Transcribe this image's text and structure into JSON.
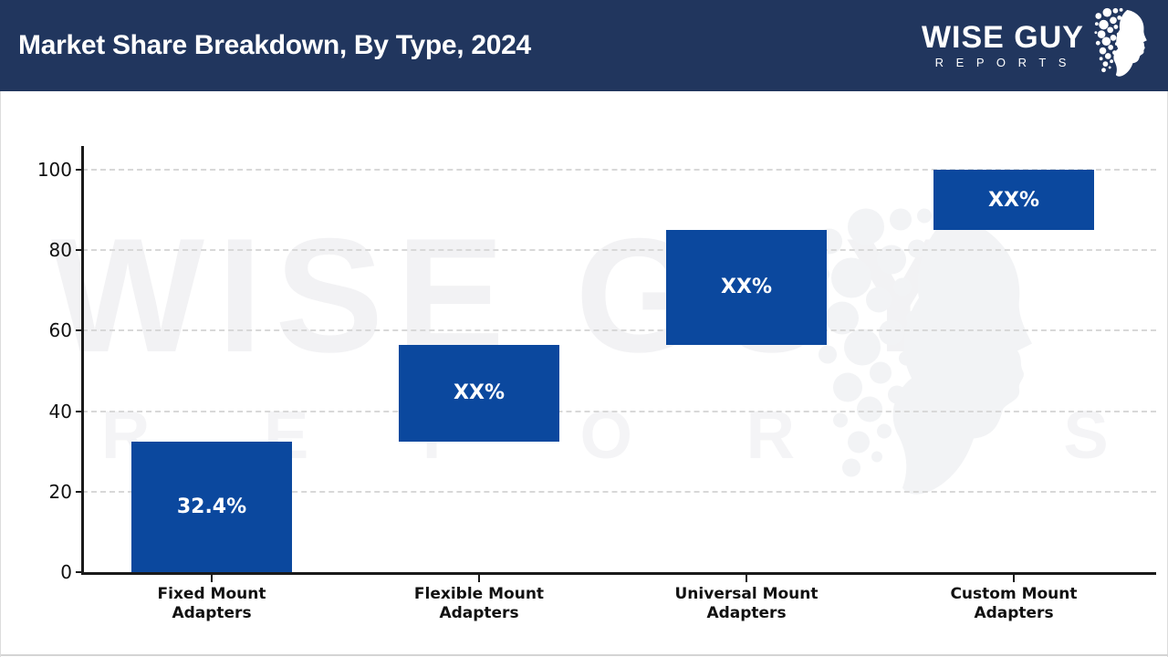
{
  "header": {
    "title": "Market Share Breakdown, By Type, 2024",
    "logo": {
      "name": "WISE GUY",
      "tagline": "R E P O R T S"
    }
  },
  "watermark": {
    "name": "WISE GUY",
    "tagline": "R E P O R T S"
  },
  "colors": {
    "header_bg": "#21365E",
    "bar": "#0B489E",
    "bar_label": "#FFFFFF",
    "grid": "#D8D8D8",
    "axis": "#1A1A1A",
    "watermark": "#F2F3F5"
  },
  "chart_data": {
    "type": "bar",
    "subtype": "floating-waterfall",
    "title": "Market Share Breakdown, By Type, 2024",
    "xlabel": "",
    "ylabel": "",
    "ylim": [
      0,
      100
    ],
    "yticks": [
      0,
      20,
      40,
      60,
      80,
      100
    ],
    "grid": {
      "horizontal": true,
      "style": "dashed"
    },
    "legend": null,
    "categories": [
      "Fixed Mount Adapters",
      "Flexible Mount Adapters",
      "Universal Mount Adapters",
      "Custom Mount Adapters"
    ],
    "segments": [
      {
        "category": "Fixed Mount Adapters",
        "start": 0,
        "end": 32.4,
        "label": "32.4%"
      },
      {
        "category": "Flexible Mount Adapters",
        "start": 32.4,
        "end": 56.5,
        "label": "XX%"
      },
      {
        "category": "Universal Mount Adapters",
        "start": 56.5,
        "end": 85,
        "label": "XX%"
      },
      {
        "category": "Custom Mount Adapters",
        "start": 85,
        "end": 100,
        "label": "XX%"
      }
    ]
  }
}
